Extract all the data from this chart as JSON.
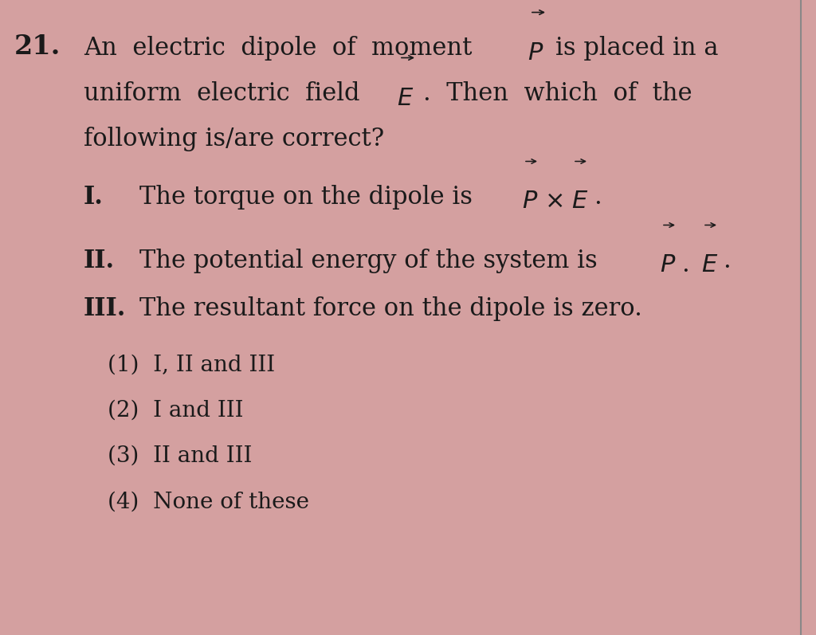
{
  "background_color": "#d4a0a0",
  "text_color": "#1a1a1a",
  "question_number": "21.",
  "question_text_line1": "An electric dipole of moment",
  "question_P": "P",
  "question_text_line1b": "is placed in a",
  "question_text_line2a": "uniform  electric  field",
  "question_E": "E",
  "question_text_line2b": ". Then  which  of  the",
  "question_text_line3": "following is/are correct?",
  "item_I_label": "I.",
  "item_I_text": "The torque on the dipole is",
  "item_I_formula": "P×E",
  "item_II_label": "II.",
  "item_II_text": "The potential energy of the system is",
  "item_II_formula": "P.E",
  "item_III_label": "III.",
  "item_III_text": "The resultant force on the dipole is zero.",
  "option1": "(1)  I, II and III",
  "option2": "(2)  I and III",
  "option3": "(3)  II and III",
  "option4": "(4)  None of these",
  "fontsize_main": 22,
  "fontsize_label": 22,
  "fontsize_options": 20
}
